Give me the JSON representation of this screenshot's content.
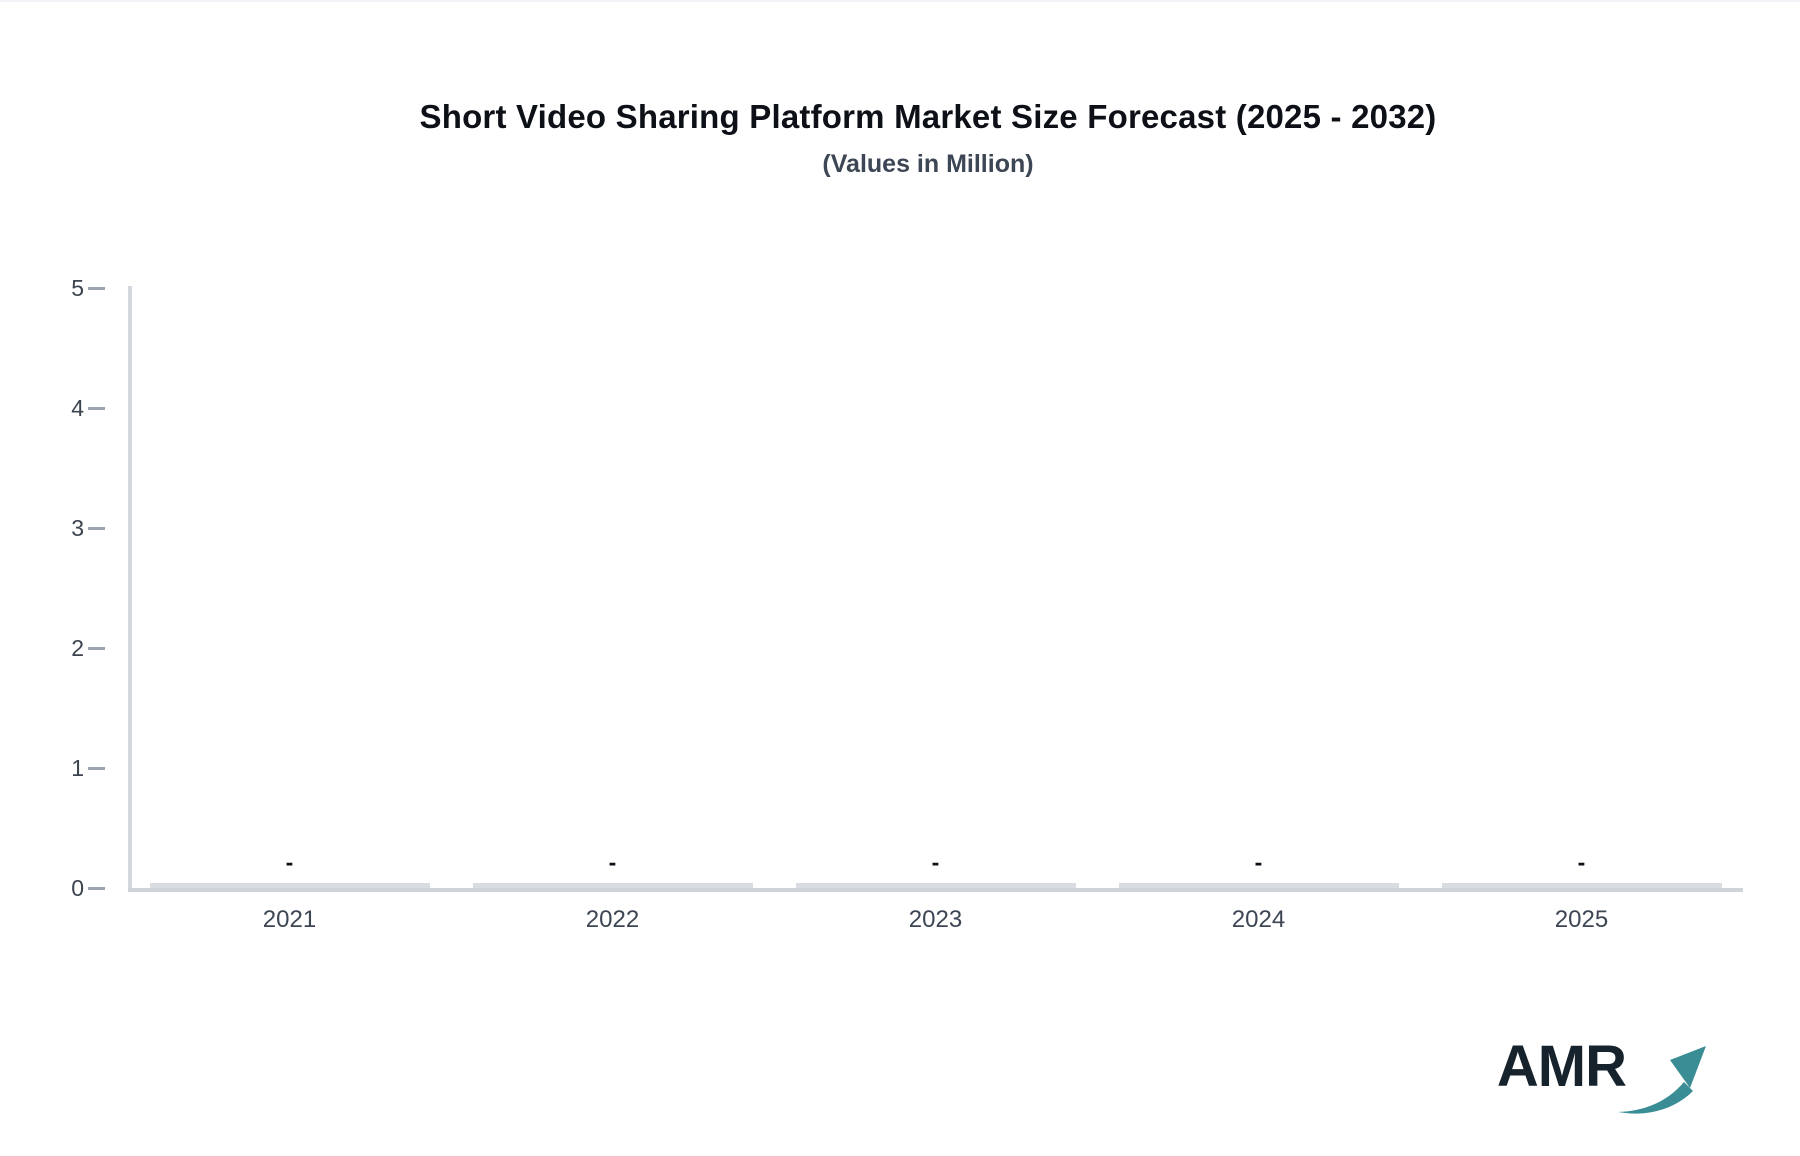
{
  "header": {
    "title": "Short Video Sharing Platform Market Size Forecast (2025 - 2032)",
    "subtitle": "(Values in Million)"
  },
  "chart_data": {
    "type": "bar",
    "title": "Short Video Sharing Platform Market Size Forecast (2025 - 2032)",
    "subtitle": "(Values in Million)",
    "categories": [
      "2021",
      "2022",
      "2023",
      "2024",
      "2025"
    ],
    "values": [
      0,
      0,
      0,
      0,
      0
    ],
    "bar_labels": [
      "-",
      "-",
      "-",
      "-",
      "-"
    ],
    "xlabel": "",
    "ylabel": "",
    "ylim": [
      0,
      5
    ],
    "yticks": [
      0,
      1,
      2,
      3,
      4,
      5
    ],
    "grid": false,
    "legend": false,
    "colors": {
      "bar": "#d9dce1",
      "baseline": "#cfd4db",
      "y_axis_line": "#d4d7dd",
      "tick_mark": "#9ba4b0",
      "tick_label": "#3c4450",
      "category_label": "#3d4654",
      "bar_label": "#0d1117",
      "title": "#0d1117",
      "subtitle": "#3d4654"
    }
  },
  "logo": {
    "text": "AMR",
    "text_color": "#16222c",
    "arrow_color": "#3a8d94"
  }
}
